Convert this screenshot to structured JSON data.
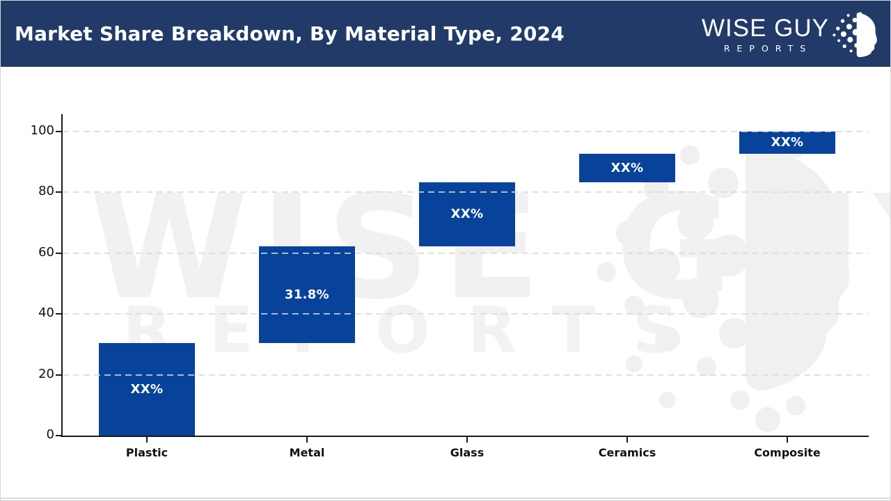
{
  "header": {
    "title": "Market Share Breakdown, By Material Type, 2024",
    "logo": {
      "line1": "WISE GUY",
      "line2": "REPORTS"
    }
  },
  "watermark": {
    "line1": "WISE GUY",
    "line2": "REPORTS"
  },
  "colors": {
    "header_bg": "#213a68",
    "bar": "#07439b",
    "grid": "#d9d9d9",
    "axis": "#1a1a1a",
    "bar_label_text": "#ffffff",
    "watermark": "#f1f1f1"
  },
  "chart_data": {
    "type": "bar",
    "subtype": "waterfall",
    "title": "Market Share Breakdown, By Material Type, 2024",
    "categories": [
      "Plastic",
      "Metal",
      "Glass",
      "Ceramics",
      "Composite"
    ],
    "segments": [
      {
        "category": "Plastic",
        "start": 0,
        "end": 30.4,
        "label": "XX%"
      },
      {
        "category": "Metal",
        "start": 30.4,
        "end": 62.2,
        "label": "31.8%"
      },
      {
        "category": "Glass",
        "start": 62.2,
        "end": 83.2,
        "label": "XX%"
      },
      {
        "category": "Ceramics",
        "start": 83.2,
        "end": 92.6,
        "label": "XX%"
      },
      {
        "category": "Composite",
        "start": 92.6,
        "end": 100,
        "label": "XX%"
      }
    ],
    "yticks": [
      0,
      20,
      40,
      60,
      80,
      100
    ],
    "ylim": [
      0,
      105
    ],
    "xlabel": "",
    "ylabel": "",
    "grid": "dashed-horizontal",
    "legend": "none"
  }
}
